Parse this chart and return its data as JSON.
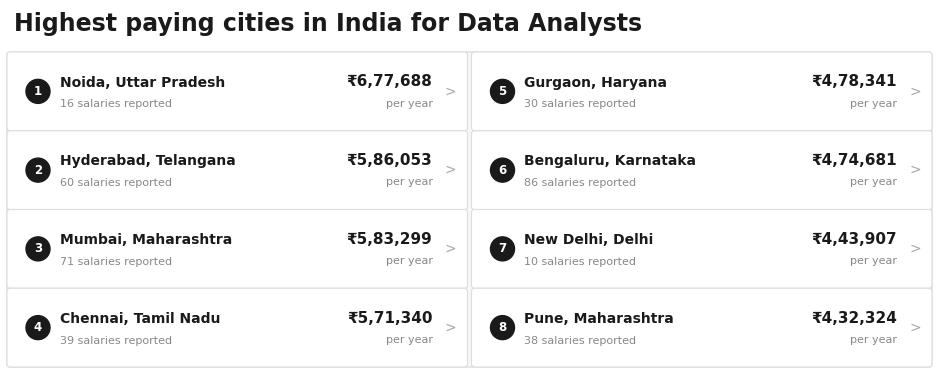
{
  "title": "Highest paying cities in India for Data Analysts",
  "background_color": "#ffffff",
  "card_color": "#ffffff",
  "card_bg_color": "#f7f7f7",
  "title_color": "#1a1a1a",
  "entries": [
    {
      "rank": 1,
      "city": "Noida, Uttar Pradesh",
      "salaries": "16 salaries reported",
      "salary": "₹6,77,688",
      "col": 0,
      "row": 0
    },
    {
      "rank": 2,
      "city": "Hyderabad, Telangana",
      "salaries": "60 salaries reported",
      "salary": "₹5,86,053",
      "col": 0,
      "row": 1
    },
    {
      "rank": 3,
      "city": "Mumbai, Maharashtra",
      "salaries": "71 salaries reported",
      "salary": "₹5,83,299",
      "col": 0,
      "row": 2
    },
    {
      "rank": 4,
      "city": "Chennai, Tamil Nadu",
      "salaries": "39 salaries reported",
      "salary": "₹5,71,340",
      "col": 0,
      "row": 3
    },
    {
      "rank": 5,
      "city": "Gurgaon, Haryana",
      "salaries": "30 salaries reported",
      "salary": "₹4,78,341",
      "col": 1,
      "row": 0
    },
    {
      "rank": 6,
      "city": "Bengaluru, Karnataka",
      "salaries": "86 salaries reported",
      "salary": "₹4,74,681",
      "col": 1,
      "row": 1
    },
    {
      "rank": 7,
      "city": "New Delhi, Delhi",
      "salaries": "10 salaries reported",
      "salary": "₹4,43,907",
      "col": 1,
      "row": 2
    },
    {
      "rank": 8,
      "city": "Pune, Maharashtra",
      "salaries": "38 salaries reported",
      "salary": "₹4,32,324",
      "col": 1,
      "row": 3
    }
  ],
  "num_rows": 4,
  "num_cols": 2,
  "fig_width": 9.39,
  "fig_height": 3.72,
  "dpi": 100,
  "title_fontsize": 17,
  "rank_fontsize": 8.5,
  "city_fontsize": 10,
  "salary_fontsize": 11,
  "sub_fontsize": 8,
  "per_year_fontsize": 8,
  "chevron_fontsize": 10,
  "border_color": "#dddddd",
  "text_dark": "#1a1a1a",
  "text_gray": "#888888",
  "chevron_color": "#aaaaaa",
  "circle_color": "#1a1a1a"
}
